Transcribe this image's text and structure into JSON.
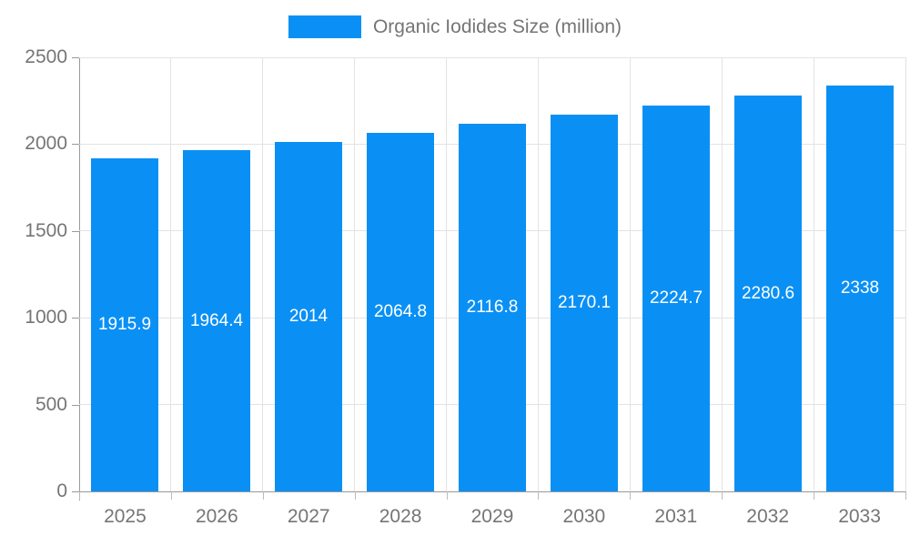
{
  "chart_data": {
    "type": "bar",
    "title": "Organic Iodides Size (million)",
    "legend": [
      "Organic Iodides Size (million)"
    ],
    "legend_position": "top",
    "categories": [
      "2025",
      "2026",
      "2027",
      "2028",
      "2029",
      "2030",
      "2031",
      "2032",
      "2033"
    ],
    "series": [
      {
        "name": "Organic Iodides Size (million)",
        "values": [
          1915.9,
          1964.4,
          2014,
          2064.8,
          2116.8,
          2170.1,
          2224.7,
          2280.6,
          2338
        ],
        "value_labels": [
          "1915.9",
          "1964.4",
          "2014",
          "2064.8",
          "2116.8",
          "2170.1",
          "2224.7",
          "2280.6",
          "2338"
        ]
      }
    ],
    "xlabel": "",
    "ylabel": "",
    "ylim": [
      0,
      2500
    ],
    "y_ticks": [
      "0",
      "500",
      "1000",
      "1500",
      "2000",
      "2500"
    ],
    "grid": true,
    "value_label_position": "inside-center",
    "colors": {
      "bar": "#0a90f5",
      "axis_text": "#757575",
      "value_label_text": "#ffffff",
      "gridline": "#e3e3e3",
      "axis_line": "#999999"
    }
  }
}
